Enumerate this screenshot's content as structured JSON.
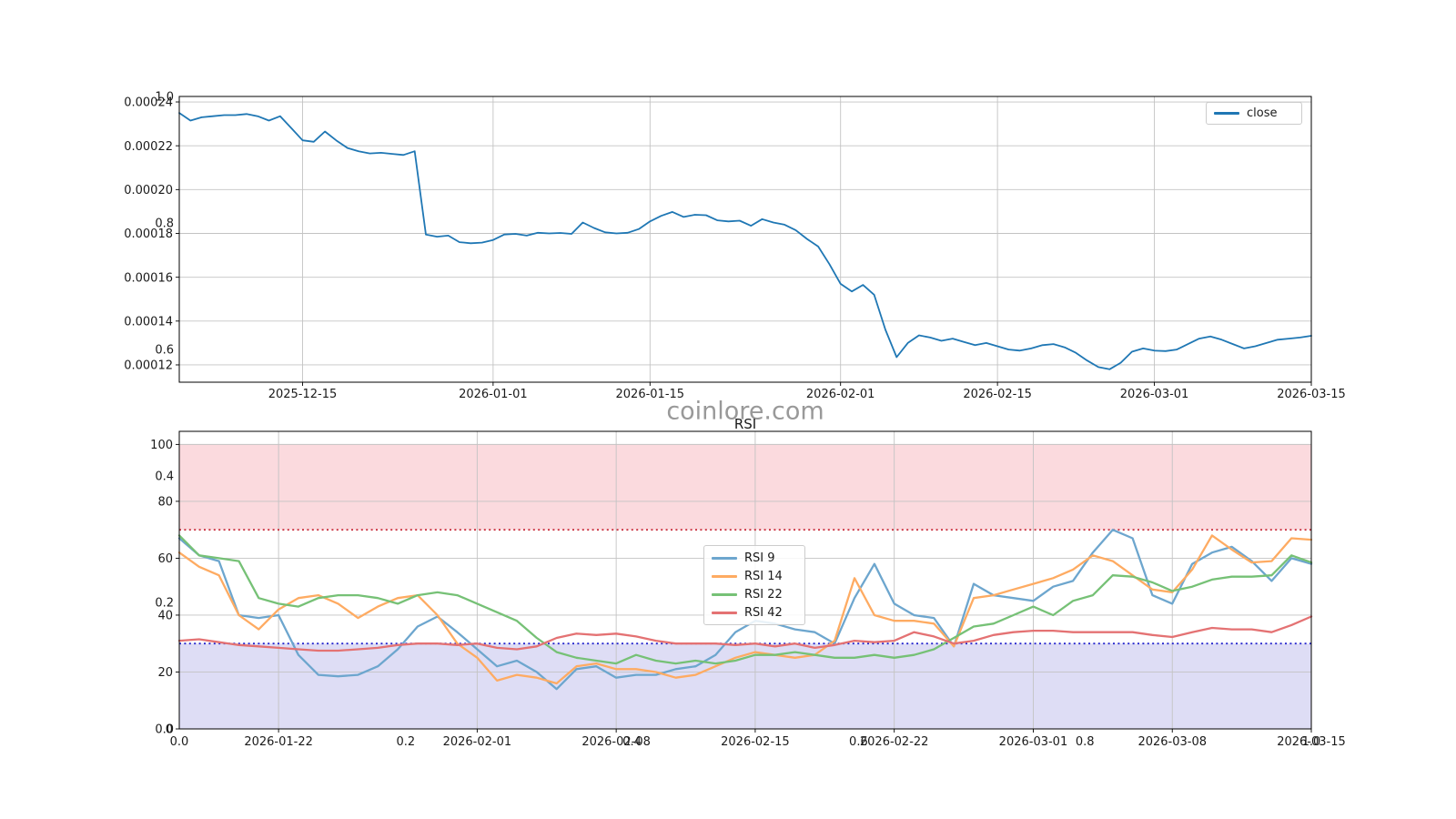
{
  "watermark": "coinlore.com",
  "hidden_axis": {
    "x_ticks": [
      "0.0",
      "0.2",
      "0.4",
      "0.6",
      "0.8",
      "1.0"
    ],
    "y_ticks": [
      "0.0",
      "0.2",
      "0.4",
      "0.6",
      "0.8",
      "1.0"
    ]
  },
  "chart_data": [
    {
      "type": "line",
      "name": "price",
      "title": "",
      "grid": true,
      "legend": {
        "position": "upper right",
        "entries": [
          {
            "label": "close",
            "color": "#1f77b4"
          }
        ]
      },
      "x_start": "2025-12-04",
      "x_end": "2026-03-15",
      "x_ticks": [
        "2025-12-15",
        "2026-01-01",
        "2026-01-15",
        "2026-02-01",
        "2026-02-15",
        "2026-03-01",
        "2026-03-15"
      ],
      "y_ticks": [
        0.00024,
        0.00022,
        0.0002,
        0.00018,
        0.00016,
        0.00014,
        0.00012
      ],
      "y_tick_labels": [
        "0.00024",
        "0.00022",
        "0.00020",
        "0.00018",
        "0.00016",
        "0.00014",
        "0.00012"
      ],
      "ylim": [
        0.0001121,
        0.0002425
      ],
      "series": [
        {
          "name": "close",
          "color": "#1f77b4",
          "width": 1.8,
          "values_scale": 1e-06,
          "values": [
            235,
            231.5,
            233,
            233.5,
            234,
            234,
            234.5,
            233.5,
            231.5,
            233.5,
            228,
            222.5,
            221.8,
            226.5,
            222.5,
            219,
            217.5,
            216.5,
            216.8,
            216.3,
            215.8,
            217.5,
            179.5,
            178.5,
            179,
            176,
            175.5,
            175.8,
            177,
            179.5,
            179.8,
            179,
            180.3,
            180,
            180.2,
            179.8,
            185,
            182.5,
            180.5,
            180,
            180.3,
            182,
            185.5,
            188,
            189.8,
            187.5,
            188.5,
            188.3,
            186,
            185.5,
            185.8,
            183.5,
            186.5,
            185,
            184,
            181.5,
            177.5,
            174,
            166,
            157,
            153.5,
            156.5,
            152,
            136,
            123.5,
            130,
            133.5,
            132.5,
            131,
            132,
            130.5,
            129,
            130,
            128.5,
            127,
            126.5,
            127.5,
            129,
            129.5,
            128,
            125.5,
            122,
            119,
            118,
            121,
            126,
            127.5,
            126.5,
            126.3,
            127,
            129.5,
            132,
            133,
            131.5,
            129.5,
            127.5,
            128.5,
            130,
            131.5,
            132,
            132.5,
            133.3
          ]
        }
      ]
    },
    {
      "type": "line",
      "name": "rsi",
      "title": "RSI",
      "grid": true,
      "legend": {
        "position": "center",
        "entries": [
          {
            "label": "RSI 9",
            "color": "#6da6ce"
          },
          {
            "label": "RSI 14",
            "color": "#feab62"
          },
          {
            "label": "RSI 22",
            "color": "#76c176"
          },
          {
            "label": "RSI 42",
            "color": "#e47273"
          }
        ]
      },
      "x_start": "2026-01-17",
      "x_end": "2026-03-15",
      "x_ticks": [
        "2026-01-22",
        "2026-02-01",
        "2026-02-08",
        "2026-02-15",
        "2026-02-22",
        "2026-03-01",
        "2026-03-08",
        "2026-03-15"
      ],
      "y_ticks": [
        0,
        20,
        40,
        60,
        80,
        100
      ],
      "y_tick_labels": [
        "0",
        "20",
        "40",
        "60",
        "80",
        "100"
      ],
      "ylim": [
        0,
        104.6
      ],
      "bands": [
        {
          "from": 70,
          "to": 100,
          "color": "#fbdade",
          "meaning": "overbought"
        },
        {
          "from": 0,
          "to": 30,
          "color": "#deddf5",
          "meaning": "oversold"
        }
      ],
      "hlines": [
        {
          "y": 70,
          "color": "#c9303e",
          "style": "dotted"
        },
        {
          "y": 30,
          "color": "#2727cd",
          "style": "dotted"
        }
      ],
      "series": [
        {
          "name": "RSI 9",
          "color": "#6da6ce",
          "width": 2.3,
          "values_scale": 1,
          "values": [
            67,
            61,
            59,
            40,
            39,
            40,
            26,
            19,
            18.5,
            19,
            22,
            28,
            36,
            39.5,
            34,
            28,
            22,
            24,
            20,
            14,
            21,
            22,
            18,
            19,
            19,
            21,
            22,
            26,
            34,
            38,
            37,
            35,
            34,
            30,
            46,
            58,
            44,
            40,
            39,
            29,
            51,
            47,
            46,
            45,
            50,
            52,
            62,
            70,
            67,
            47,
            44,
            58,
            62,
            64,
            59,
            52,
            60,
            58
          ]
        },
        {
          "name": "RSI 14",
          "color": "#feab62",
          "width": 2.3,
          "values_scale": 1,
          "values": [
            62,
            57,
            54,
            40,
            35,
            42,
            46,
            47,
            44,
            39,
            43,
            46,
            47,
            40,
            30,
            25,
            17,
            19,
            18,
            16,
            22,
            23,
            21,
            21,
            20,
            18,
            19,
            22,
            25,
            27,
            26,
            25,
            26,
            31,
            53,
            40,
            38,
            38,
            37,
            29,
            46,
            47,
            49,
            51,
            53,
            56,
            61,
            59,
            54,
            49,
            48,
            56,
            68,
            63,
            58.5,
            59,
            67,
            66.5
          ]
        },
        {
          "name": "RSI 22",
          "color": "#76c176",
          "width": 2.3,
          "values_scale": 1,
          "values": [
            68,
            61,
            60,
            59,
            46,
            44,
            43,
            46,
            47,
            47,
            46,
            44,
            47,
            48,
            47,
            44,
            41,
            38,
            32,
            27,
            25,
            24,
            23,
            26,
            24,
            23,
            24,
            23,
            24,
            26,
            26,
            27,
            26,
            25,
            25,
            26,
            25,
            26,
            28,
            32,
            36,
            37,
            40,
            43,
            40,
            45,
            47,
            54,
            53.5,
            51.5,
            48.5,
            50,
            52.5,
            53.5,
            53.5,
            54,
            61,
            58.5
          ]
        },
        {
          "name": "RSI 42",
          "color": "#e47273",
          "width": 2.3,
          "values_scale": 1,
          "values": [
            31,
            31.5,
            30.5,
            29.5,
            29,
            28.5,
            28,
            27.5,
            27.5,
            28,
            28.5,
            29.5,
            30,
            30,
            29.5,
            30,
            28.5,
            28,
            29,
            32,
            33.5,
            33,
            33.5,
            32.5,
            31,
            30,
            30,
            30,
            29.5,
            30,
            29,
            30,
            28.5,
            29.5,
            31,
            30.5,
            31,
            34,
            32.5,
            30,
            31,
            33,
            34,
            34.5,
            34.5,
            34,
            34,
            34,
            34,
            33,
            32.3,
            34,
            35.5,
            35,
            35,
            34,
            36.5,
            39.5
          ]
        }
      ]
    }
  ]
}
